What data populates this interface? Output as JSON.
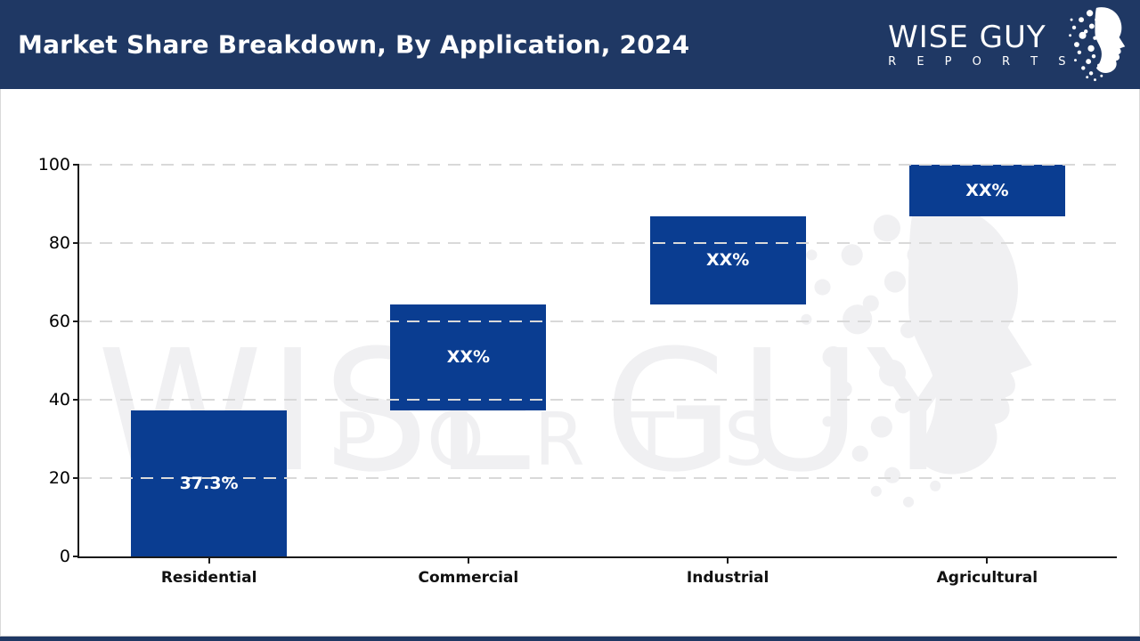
{
  "header": {
    "title": "Market Share Breakdown, By Application, 2024",
    "logo": {
      "name_top": "WISE GUY",
      "name_bottom": "R E P O R T S"
    }
  },
  "watermark": {
    "line1": "WISE GUY",
    "line2": "REPORTS"
  },
  "colors": {
    "header_bg": "#1f3864",
    "footer_bg": "#1f3864",
    "bar_fill": "#0a3d91",
    "bar_label_text": "#ffffff",
    "gridline": "#d9d9d9",
    "axis": "#1a1a1a",
    "tick_label": "#000000",
    "watermark": "#f0f0f2",
    "title_text": "#ffffff"
  },
  "chart_data": {
    "type": "bar",
    "subtype": "waterfall",
    "title": "Market Share Breakdown, By Application, 2024",
    "categories": [
      "Residential",
      "Commercial",
      "Industrial",
      "Agricultural"
    ],
    "segments": [
      {
        "category": "Residential",
        "start": 0,
        "end": 37.3,
        "label": "37.3%"
      },
      {
        "category": "Commercial",
        "start": 37.3,
        "end": 64.4,
        "label": "XX%"
      },
      {
        "category": "Industrial",
        "start": 64.4,
        "end": 86.9,
        "label": "XX%"
      },
      {
        "category": "Agricultural",
        "start": 86.9,
        "end": 100,
        "label": "XX%"
      }
    ],
    "ylim": [
      0,
      100
    ],
    "yticks": [
      0,
      20,
      40,
      60,
      80,
      100
    ],
    "xlabel": "",
    "ylabel": "",
    "grid": "horizontal-dashed",
    "legend": "none"
  }
}
